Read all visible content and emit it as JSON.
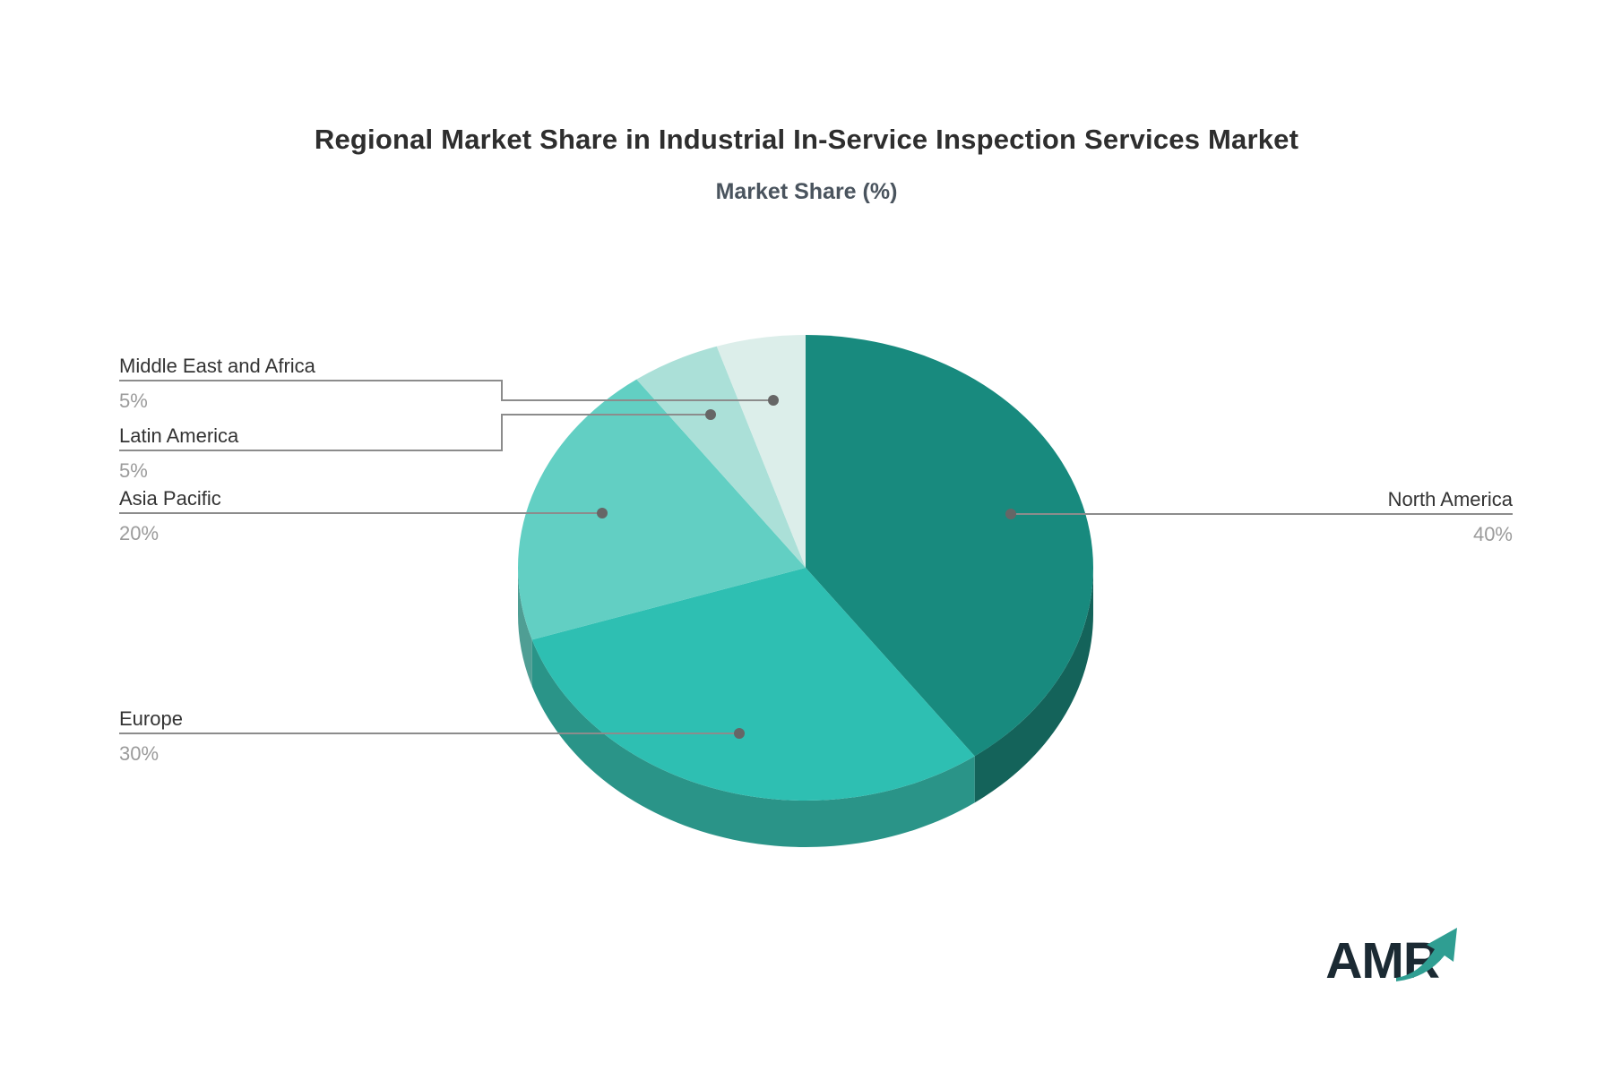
{
  "chart_data": {
    "type": "pie",
    "title": "Regional Market Share in Industrial In-Service Inspection Services Market",
    "subtitle": "Market Share (%)",
    "unit": "%",
    "start_angle_deg": 0,
    "direction": "clockwise",
    "style": "3d-depth",
    "legend_position": "none",
    "label_style": "leader-lines",
    "slices": [
      {
        "label": "North America",
        "value": 40,
        "display": "40%",
        "color": "#188a7e",
        "depth_color": "#14635a"
      },
      {
        "label": "Europe",
        "value": 30,
        "display": "30%",
        "color": "#2ebfb2",
        "depth_color": "#2a9488"
      },
      {
        "label": "Asia Pacific",
        "value": 20,
        "display": "20%",
        "color": "#62cfc3",
        "depth_color": "#4f9e94"
      },
      {
        "label": "Latin America",
        "value": 5,
        "display": "5%",
        "color": "#abe0d8",
        "depth_color": null
      },
      {
        "label": "Middle East and Africa",
        "value": 5,
        "display": "5%",
        "color": "#dceeea",
        "depth_color": null
      }
    ],
    "connector_color": "#8c8c8c",
    "connector_dot_color": "#666666",
    "label_text_color": "#333333",
    "value_text_color": "#9b9b9b"
  },
  "logo": {
    "text": "AMR",
    "text_color": "#1b2a33",
    "arrow_color": "#2f9e92"
  }
}
